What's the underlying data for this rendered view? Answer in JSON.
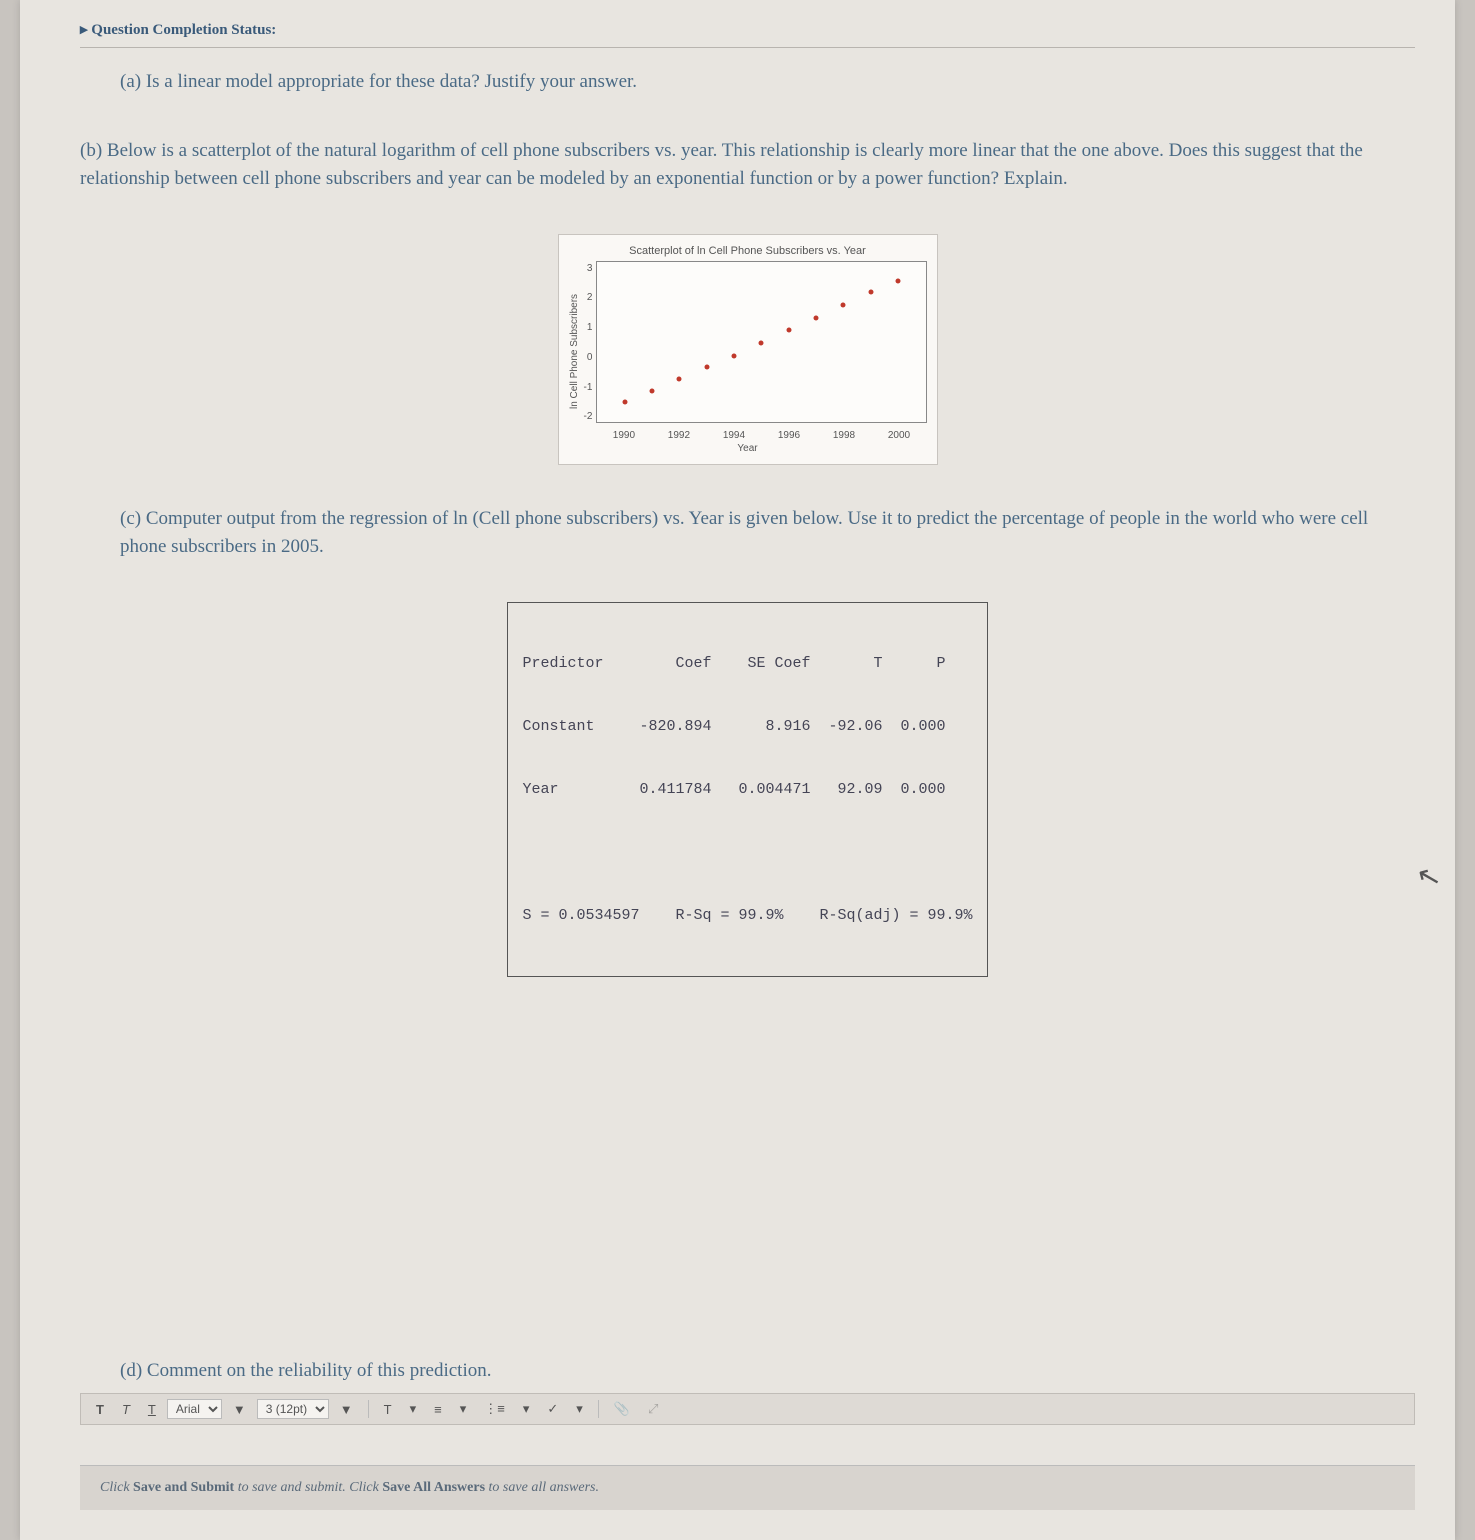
{
  "status_bar": "▸ Question Completion Status:",
  "q_a": "(a) Is a linear model appropriate for these data?  Justify your answer.",
  "q_b": "(b) Below is a scatterplot of the natural logarithm of cell phone subscribers vs. year.  This relationship is clearly more linear that the one above.  Does this suggest that the relationship between cell phone subscribers and year can be modeled by an exponential function or by a power function?  Explain.",
  "q_c": "(c) Computer output from the regression of ln (Cell phone subscribers) vs. Year is given below.  Use it to predict the percentage of people in the world who were cell phone subscribers in 2005.",
  "q_d": "(d) Comment on the reliability of this prediction.",
  "chart": {
    "title": "Scatterplot of ln Cell Phone Subscribers vs. Year",
    "ylabel": "ln Cell Phone Subscribers",
    "xlabel": "Year",
    "y_ticks": [
      "3",
      "2",
      "1",
      "0",
      "-1",
      "-2"
    ],
    "x_ticks": [
      "1990",
      "1992",
      "1994",
      "1996",
      "1998",
      "2000"
    ],
    "xlim": [
      1989,
      2001
    ],
    "ylim": [
      -2.5,
      3.2
    ],
    "point_color": "#c0392b",
    "background_color": "#fdfcfa",
    "border_color": "#888888",
    "points": [
      {
        "x": 1990,
        "y": -1.8
      },
      {
        "x": 1991,
        "y": -1.4
      },
      {
        "x": 1992,
        "y": -1.0
      },
      {
        "x": 1993,
        "y": -0.55
      },
      {
        "x": 1994,
        "y": -0.15
      },
      {
        "x": 1995,
        "y": 0.3
      },
      {
        "x": 1996,
        "y": 0.75
      },
      {
        "x": 1997,
        "y": 1.2
      },
      {
        "x": 1998,
        "y": 1.65
      },
      {
        "x": 1999,
        "y": 2.1
      },
      {
        "x": 2000,
        "y": 2.5
      }
    ]
  },
  "regression": {
    "header": "Predictor        Coef    SE Coef       T      P",
    "row1": "Constant     -820.894      8.916  -92.06  0.000",
    "row2": "Year         0.411784   0.004471   92.09  0.000",
    "summary": "S = 0.0534597    R-Sq = 99.9%    R-Sq(adj) = 99.9%"
  },
  "toolbar": {
    "bold": "T",
    "italic": "T",
    "underline": "T",
    "font": "Arial",
    "size": "3 (12pt)",
    "textcolor": "T",
    "bullet": "≡",
    "number": "⋮≡",
    "spell": "✓",
    "attach": "📎",
    "expand": "⤢"
  },
  "footer": {
    "prefix": "Click ",
    "b1": "Save and Submit",
    "mid": " to save and submit. Click ",
    "b2": "Save All Answers",
    "suffix": " to save all answers."
  }
}
